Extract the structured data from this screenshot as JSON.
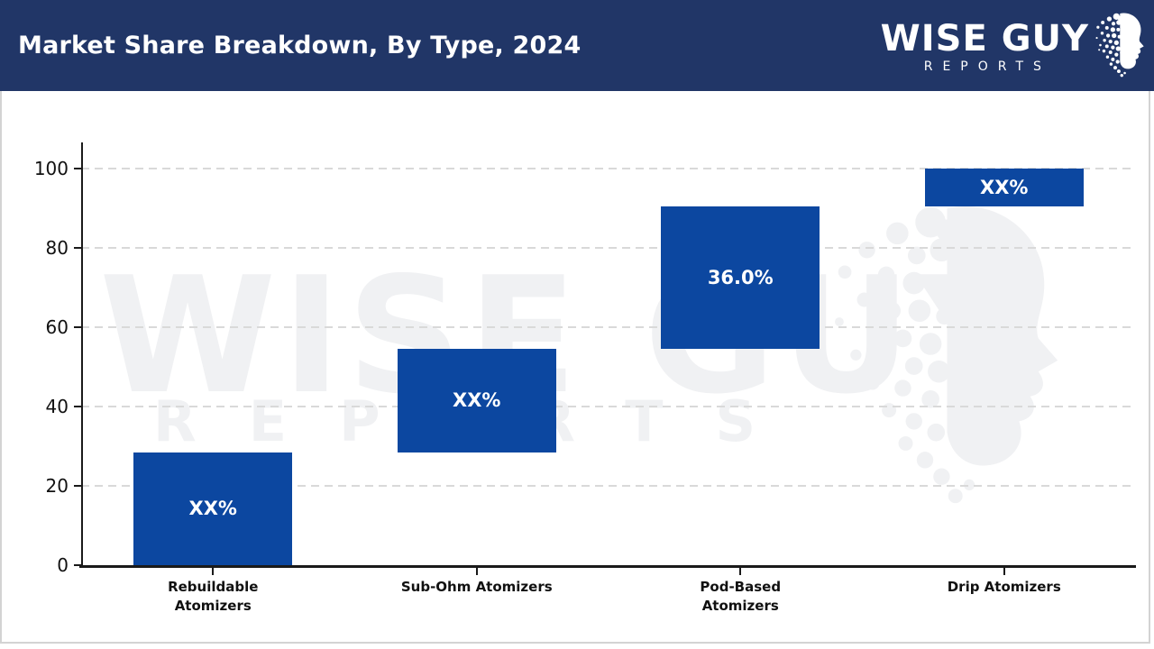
{
  "header": {
    "title": "Market Share Breakdown, By Type, 2024",
    "logo": {
      "line1": "WISE GUY",
      "line2": "REPORTS"
    }
  },
  "watermark": {
    "line1": "WISE GUY",
    "line2": "REPORTS"
  },
  "colors": {
    "header_bg": "#213667",
    "bar": "#0c47a0",
    "bar_label": "#ffffff",
    "grid": "#d9d9d9",
    "axis": "#1a1a1a",
    "watermark": "#f0f1f3"
  },
  "chart_data": {
    "type": "bar",
    "subtype": "waterfall",
    "title": "Market Share Breakdown, By Type, 2024",
    "xlabel": "",
    "ylabel": "",
    "ylim": [
      0,
      106
    ],
    "yticks": [
      0,
      20,
      40,
      60,
      80,
      100
    ],
    "grid": "horizontal-dashed",
    "legend": "none",
    "categories": [
      "Rebuildable Atomizers",
      "Sub-Ohm Atomizers",
      "Pod-Based Atomizers",
      "Drip Atomizers"
    ],
    "bars": [
      {
        "category_lines": [
          "Rebuildable",
          "Atomizers"
        ],
        "base": 0,
        "value": 28.5,
        "label": "XX%"
      },
      {
        "category_lines": [
          "Sub-Ohm Atomizers"
        ],
        "base": 28.5,
        "value": 26.0,
        "label": "XX%"
      },
      {
        "category_lines": [
          "Pod-Based",
          "Atomizers"
        ],
        "base": 54.5,
        "value": 36.0,
        "label": "36.0%"
      },
      {
        "category_lines": [
          "Drip Atomizers"
        ],
        "base": 90.5,
        "value": 9.5,
        "label": "XX%"
      }
    ]
  }
}
